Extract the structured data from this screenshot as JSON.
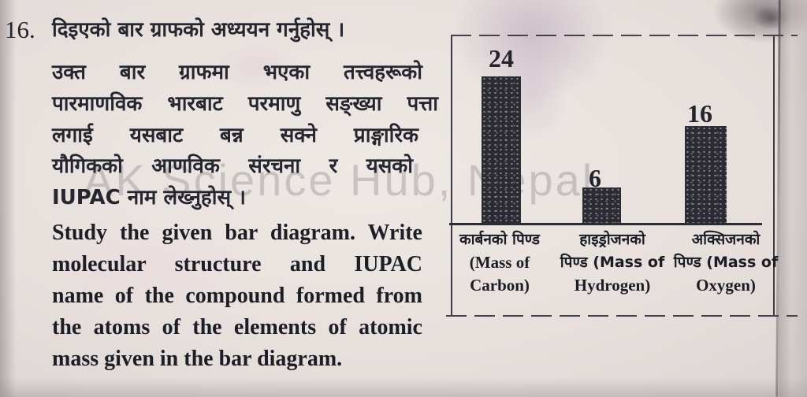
{
  "watermark": "AK Science Hub, Nepal",
  "question": {
    "number": "16.",
    "nepali_lines": [
      "दिइएको बार ग्राफको अध्ययन गर्नुहोस् ।",
      "उक्त बार ग्राफमा भएका तत्त्वहरूको",
      "पारमाणविक भारबाट परमाणु सङ्ख्या पत्ता",
      "लगाई यसबाट बन्न सक्ने प्राङ्गारिक",
      "यौगिकको आणविक संरचना र यसको",
      "IUPAC नाम लेख्नुहोस् ।"
    ],
    "english_lines": [
      "Study the given bar diagram. Write",
      "molecular structure and IUPAC",
      "name of the compound formed from",
      "the atoms of the elements of atomic",
      "mass given in the bar diagram."
    ]
  },
  "chart_data": {
    "type": "bar",
    "title": "",
    "xlabel": "",
    "ylabel": "",
    "categories": [
      "कार्बनको पिण्ड (Mass of Carbon)",
      "हाइड्रोजनको पिण्ड (Mass of Hydrogen)",
      "अक्सिजनको पिण्ड (Mass of Oxygen)"
    ],
    "values": [
      24,
      6,
      16
    ],
    "data_labels": [
      "24",
      "6",
      "16"
    ],
    "axis_label_lines": [
      [
        "कार्बनको पिण्ड",
        "(Mass of",
        "Carbon)"
      ],
      [
        "हाइड्रोजनको",
        "पिण्ड (Mass of",
        "Hydrogen)"
      ],
      [
        "अक्सिजनको",
        "पिण्ड (Mass of",
        "Oxygen)"
      ]
    ],
    "ylim": [
      0,
      26
    ],
    "grid": false,
    "legend": false,
    "bar_color": "#2b2b33"
  }
}
